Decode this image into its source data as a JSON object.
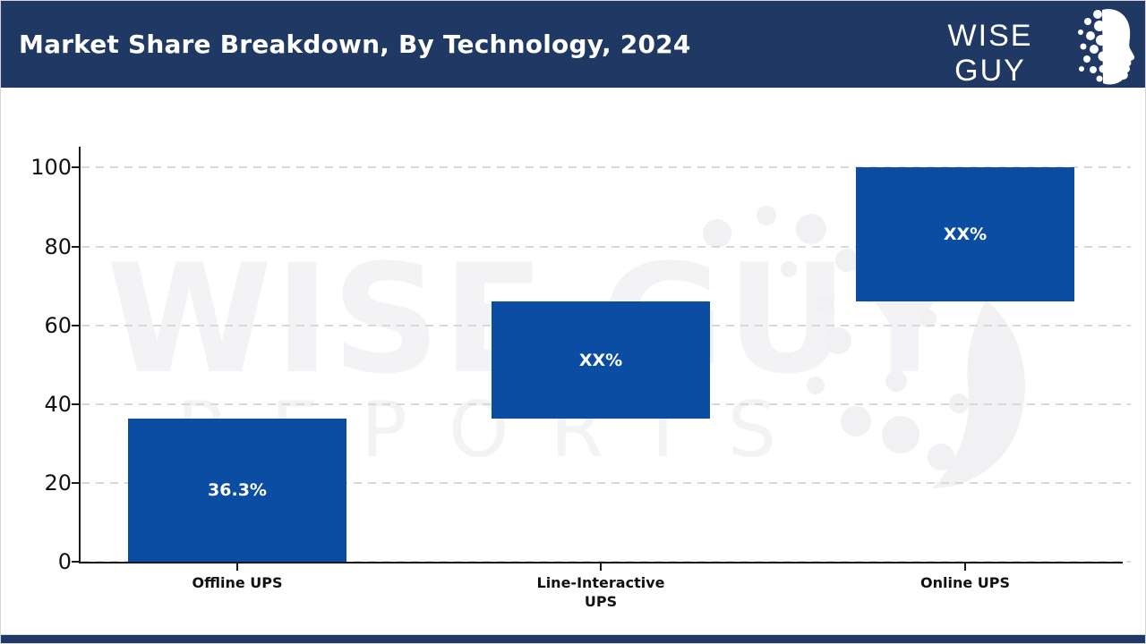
{
  "header": {
    "title": "Market Share Breakdown, By Technology, 2024",
    "logo": {
      "line1": "WISE GUY",
      "line2": "REPORTS"
    }
  },
  "watermark": {
    "line1": "WISE GUY",
    "line2": "REPORTS"
  },
  "chart_data": {
    "type": "bar",
    "subtype": "waterfall",
    "title": "Market Share Breakdown, By Technology, 2024",
    "categories": [
      "Offline UPS",
      "Line-Interactive UPS",
      "Online UPS"
    ],
    "bars": [
      {
        "category": "Offline UPS",
        "start": 0,
        "end": 36.3,
        "label": "36.3%"
      },
      {
        "category": "Line-Interactive UPS",
        "start": 36.3,
        "end": 66,
        "label": "XX%"
      },
      {
        "category": "Online UPS",
        "start": 66,
        "end": 100,
        "label": "XX%"
      }
    ],
    "xlabel": "",
    "ylabel": "",
    "ylim": [
      0,
      100
    ],
    "yticks": [
      0,
      20,
      40,
      60,
      80,
      100
    ],
    "grid": "horizontal-dashed",
    "legend": "none",
    "bar_color": "#0b4da2",
    "bar_label_color": "#ffffff"
  },
  "colors": {
    "header_bg": "#203864",
    "footer_bg": "#203864",
    "accent_blue": "#0b4da2",
    "gridline": "#d9d9d9",
    "axis": "#1a1a1a",
    "watermark": "#f3f3f5"
  }
}
